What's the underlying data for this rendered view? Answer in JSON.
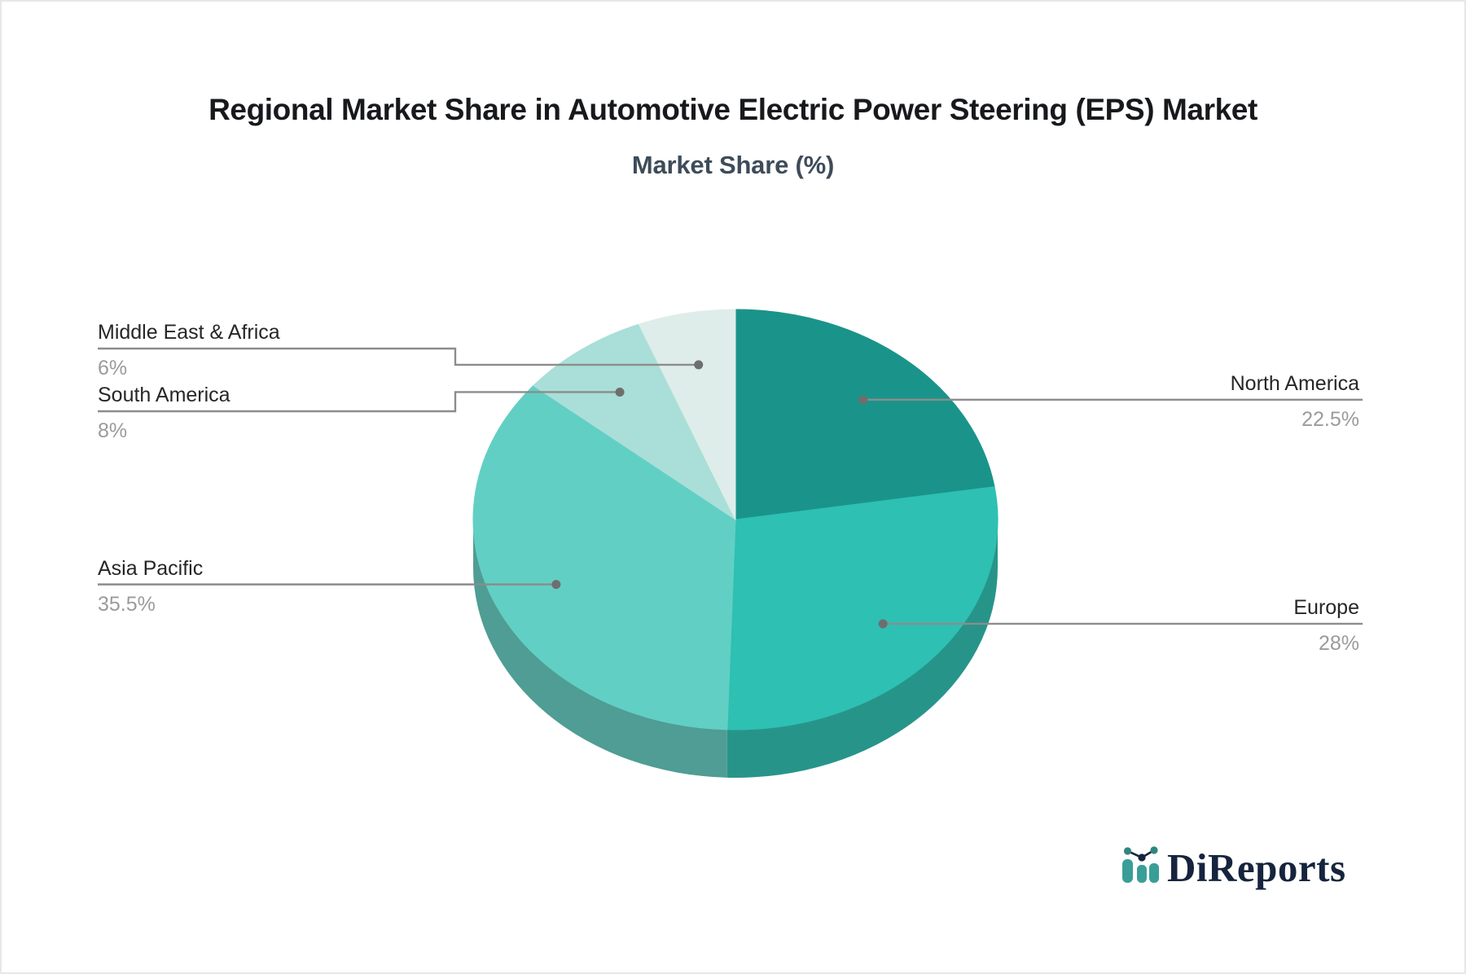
{
  "chart_data": {
    "type": "pie",
    "title": "Regional Market Share in Automotive Electric Power Steering (EPS) Market",
    "subtitle": "Market Share (%)",
    "effect": "3d",
    "start_angle_deg": 0,
    "direction": "clockwise",
    "segments": [
      {
        "label": "North America",
        "value": 22.5,
        "display": "22.5%",
        "color": "#1A948A"
      },
      {
        "label": "Europe",
        "value": 28,
        "display": "28%",
        "color": "#2EC0B2",
        "side_color": "#27948A"
      },
      {
        "label": "Asia Pacific",
        "value": 35.5,
        "display": "35.5%",
        "color": "#62CFC4",
        "side_color": "#4F9D94"
      },
      {
        "label": "South America",
        "value": 8,
        "display": "8%",
        "color": "#A9DFD8"
      },
      {
        "label": "Middle East & Africa",
        "value": 6,
        "display": "6%",
        "color": "#DEEDE9"
      }
    ],
    "callout_line_color": "#8C8C8C",
    "callout_dot_color": "#6E6E6E",
    "label_color": "#262626",
    "value_color": "#9B9B9B",
    "legend": "none"
  },
  "footer": {
    "logo_text": "DiReports",
    "logo_text_color": "#16243D",
    "logo_bar_color": "#3A9E98",
    "logo_dot_dark_color": "#16243D",
    "logo_dot_teal_color": "#2F867F"
  }
}
